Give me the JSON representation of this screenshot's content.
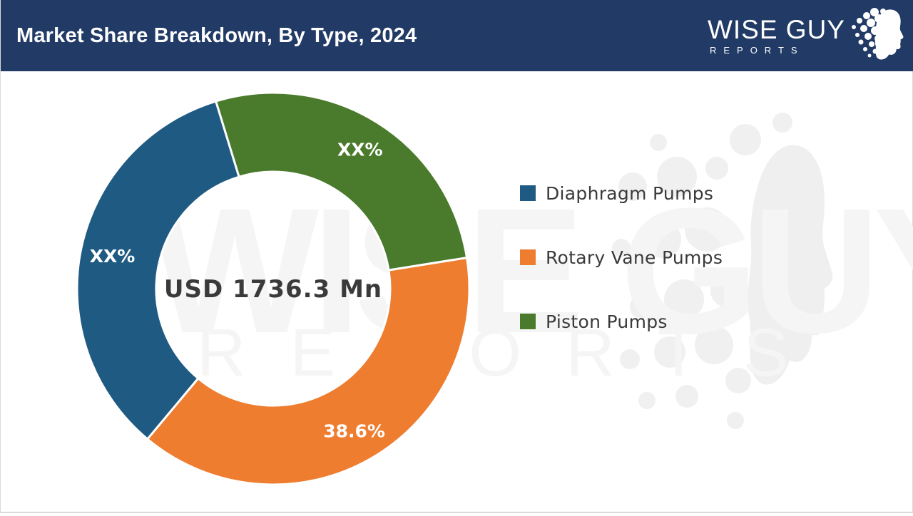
{
  "header": {
    "title": "Market Share Breakdown, By Type, 2024",
    "logo": {
      "line1": "WISE GUY",
      "line2": "REPORTS"
    }
  },
  "watermark": {
    "line1": "WISE GUY",
    "line2": "REPORTS"
  },
  "legend": {
    "items": [
      {
        "label": "Diaphragm Pumps",
        "color": "#1F5A82"
      },
      {
        "label": "Rotary Vane Pumps",
        "color": "#EE7D30"
      },
      {
        "label": "Piston Pumps",
        "color": "#4A7A2B"
      }
    ]
  },
  "chart_data": {
    "type": "pie",
    "subtype": "donut",
    "title": "Market Share Breakdown, By Type, 2024",
    "center_label": "USD 1736.3 Mn",
    "total_value": 1736.3,
    "units": "USD Mn",
    "year": "2024",
    "legend_position": "right",
    "start_angle_deg": 343,
    "slices": [
      {
        "name": "Piston Pumps",
        "percent": 27.2,
        "display_label": "XX%",
        "color": "#4A7A2B",
        "label_shown": true
      },
      {
        "name": "Rotary Vane Pumps",
        "percent": 38.6,
        "display_label": "38.6%",
        "color": "#EE7D30",
        "label_shown": true
      },
      {
        "name": "Diaphragm Pumps",
        "percent": 34.2,
        "display_label": "XX%",
        "color": "#1F5A82",
        "label_shown": true
      }
    ]
  },
  "colors": {
    "header_bg": "#213A66",
    "watermark": "#F5F5F5",
    "center_text": "#3A3A3A",
    "separator": "#FFFFFF"
  }
}
